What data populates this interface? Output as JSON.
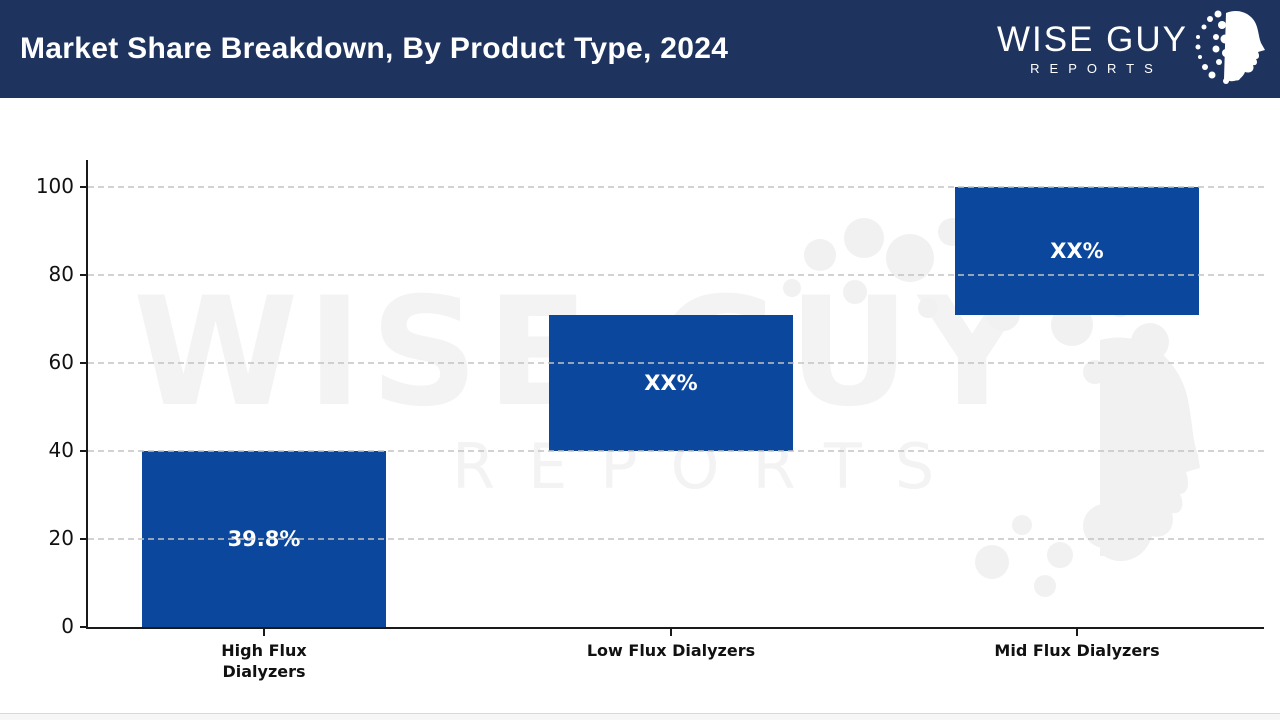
{
  "header": {
    "title": "Market Share Breakdown, By Product Type, 2024",
    "bg_color": "#1e345f",
    "logo": {
      "line1": "WISE GUY",
      "line2": "REPORTS"
    }
  },
  "watermark": {
    "line1": "WISE GUY",
    "line2": "REPORTS"
  },
  "chart_data": {
    "type": "bar",
    "variant": "floating-segment-breakdown",
    "title": "Market Share Breakdown, By Product Type, 2024",
    "categories": [
      "High Flux Dialyzers",
      "Low Flux Dialyzers",
      "Mid Flux Dialyzers"
    ],
    "tick_labels": [
      "High Flux\nDialyzers",
      "Low Flux Dialyzers",
      "Mid Flux Dialyzers"
    ],
    "segments": [
      {
        "category": "High Flux Dialyzers",
        "start": 0,
        "end": 40,
        "label": "39.8%"
      },
      {
        "category": "Low Flux Dialyzers",
        "start": 40,
        "end": 71,
        "label": "XX%"
      },
      {
        "category": "Mid Flux Dialyzers",
        "start": 71,
        "end": 100,
        "label": "XX%"
      }
    ],
    "yticks": [
      0,
      20,
      40,
      60,
      80,
      100
    ],
    "ylim": [
      0,
      106
    ],
    "grid": "horizontal-dashed-over-bars",
    "legend": "none",
    "bar_color": "#0b479d",
    "bar_label_color": "#ffffff",
    "axis_color": "#1a1a1a",
    "grid_color": "#c9c9c9"
  }
}
